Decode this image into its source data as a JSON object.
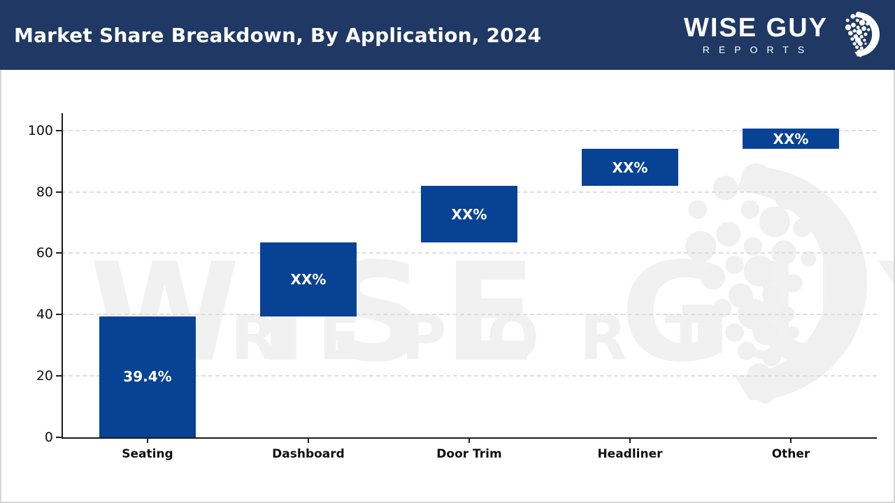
{
  "header": {
    "title": "Market Share Breakdown, By Application, 2024",
    "bg_color": "#1f3864",
    "logo": {
      "line1": "WISE GUY",
      "line2": "REPORTS"
    }
  },
  "watermark": {
    "line1": "WISE GUY",
    "line2": "REPORTS"
  },
  "chart_data": {
    "type": "bar",
    "subtype": "waterfall",
    "title": "Market Share Breakdown, By Application, 2024",
    "categories": [
      "Seating",
      "Dashboard",
      "Door Trim",
      "Headliner",
      "Other"
    ],
    "segments": [
      {
        "category": "Seating",
        "start": 0,
        "end": 39.4,
        "label": "39.4%"
      },
      {
        "category": "Dashboard",
        "start": 39.4,
        "end": 63.5,
        "label": "XX%"
      },
      {
        "category": "Door Trim",
        "start": 63.5,
        "end": 81.9,
        "label": "XX%"
      },
      {
        "category": "Headliner",
        "start": 81.9,
        "end": 94.0,
        "label": "XX%"
      },
      {
        "category": "Other",
        "start": 94.0,
        "end": 100.6,
        "label": "XX%"
      }
    ],
    "yticks": [
      0,
      20,
      40,
      60,
      80,
      100
    ],
    "ylim": [
      0,
      105
    ],
    "xlabel": "",
    "ylabel": "",
    "bar_color": "#084294",
    "grid": "horizontal-dashed",
    "legend": "none"
  }
}
